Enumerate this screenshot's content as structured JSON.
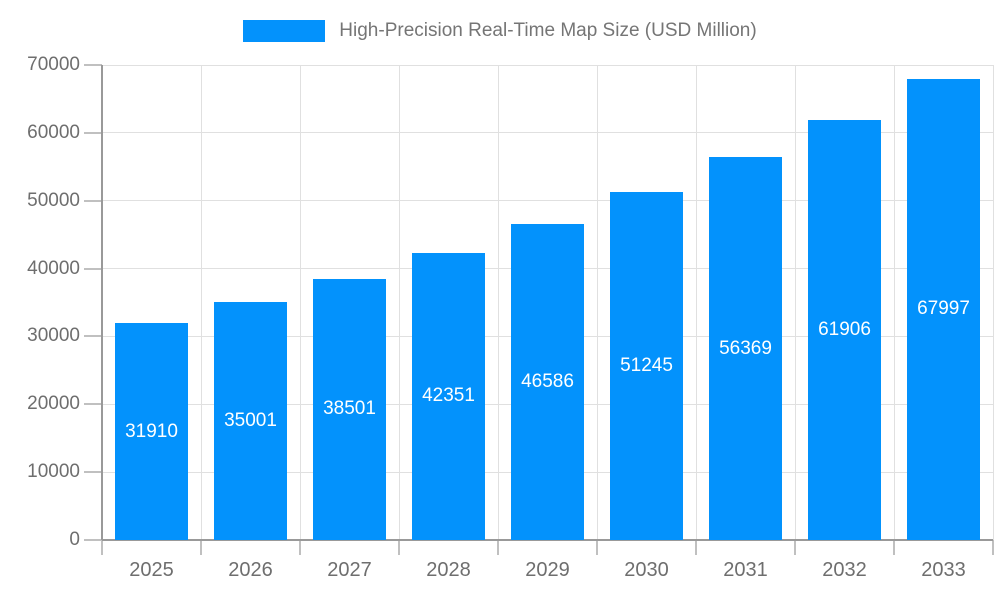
{
  "legend": {
    "label": "High-Precision Real-Time Map Size (USD Million)"
  },
  "chart_data": {
    "type": "bar",
    "title": "High-Precision Real-Time Map Size (USD Million)",
    "xlabel": "",
    "ylabel": "",
    "categories": [
      "2025",
      "2026",
      "2027",
      "2028",
      "2029",
      "2030",
      "2031",
      "2032",
      "2033"
    ],
    "values": [
      31910,
      35001,
      38501,
      42351,
      46586,
      51245,
      56369,
      61906,
      67997
    ],
    "yticks": [
      0,
      10000,
      20000,
      30000,
      40000,
      50000,
      60000,
      70000
    ],
    "ylim": [
      0,
      70000
    ],
    "grid": true,
    "legend_position": "top",
    "value_labels": "inside-center",
    "bar_color": "#0392FC",
    "value_label_color": "#FFFFFF",
    "axis_label_color": "#6E6E6E",
    "title_color": "#757575",
    "grid_color": "#E0E0E0",
    "axis_line_color": "#999999"
  }
}
